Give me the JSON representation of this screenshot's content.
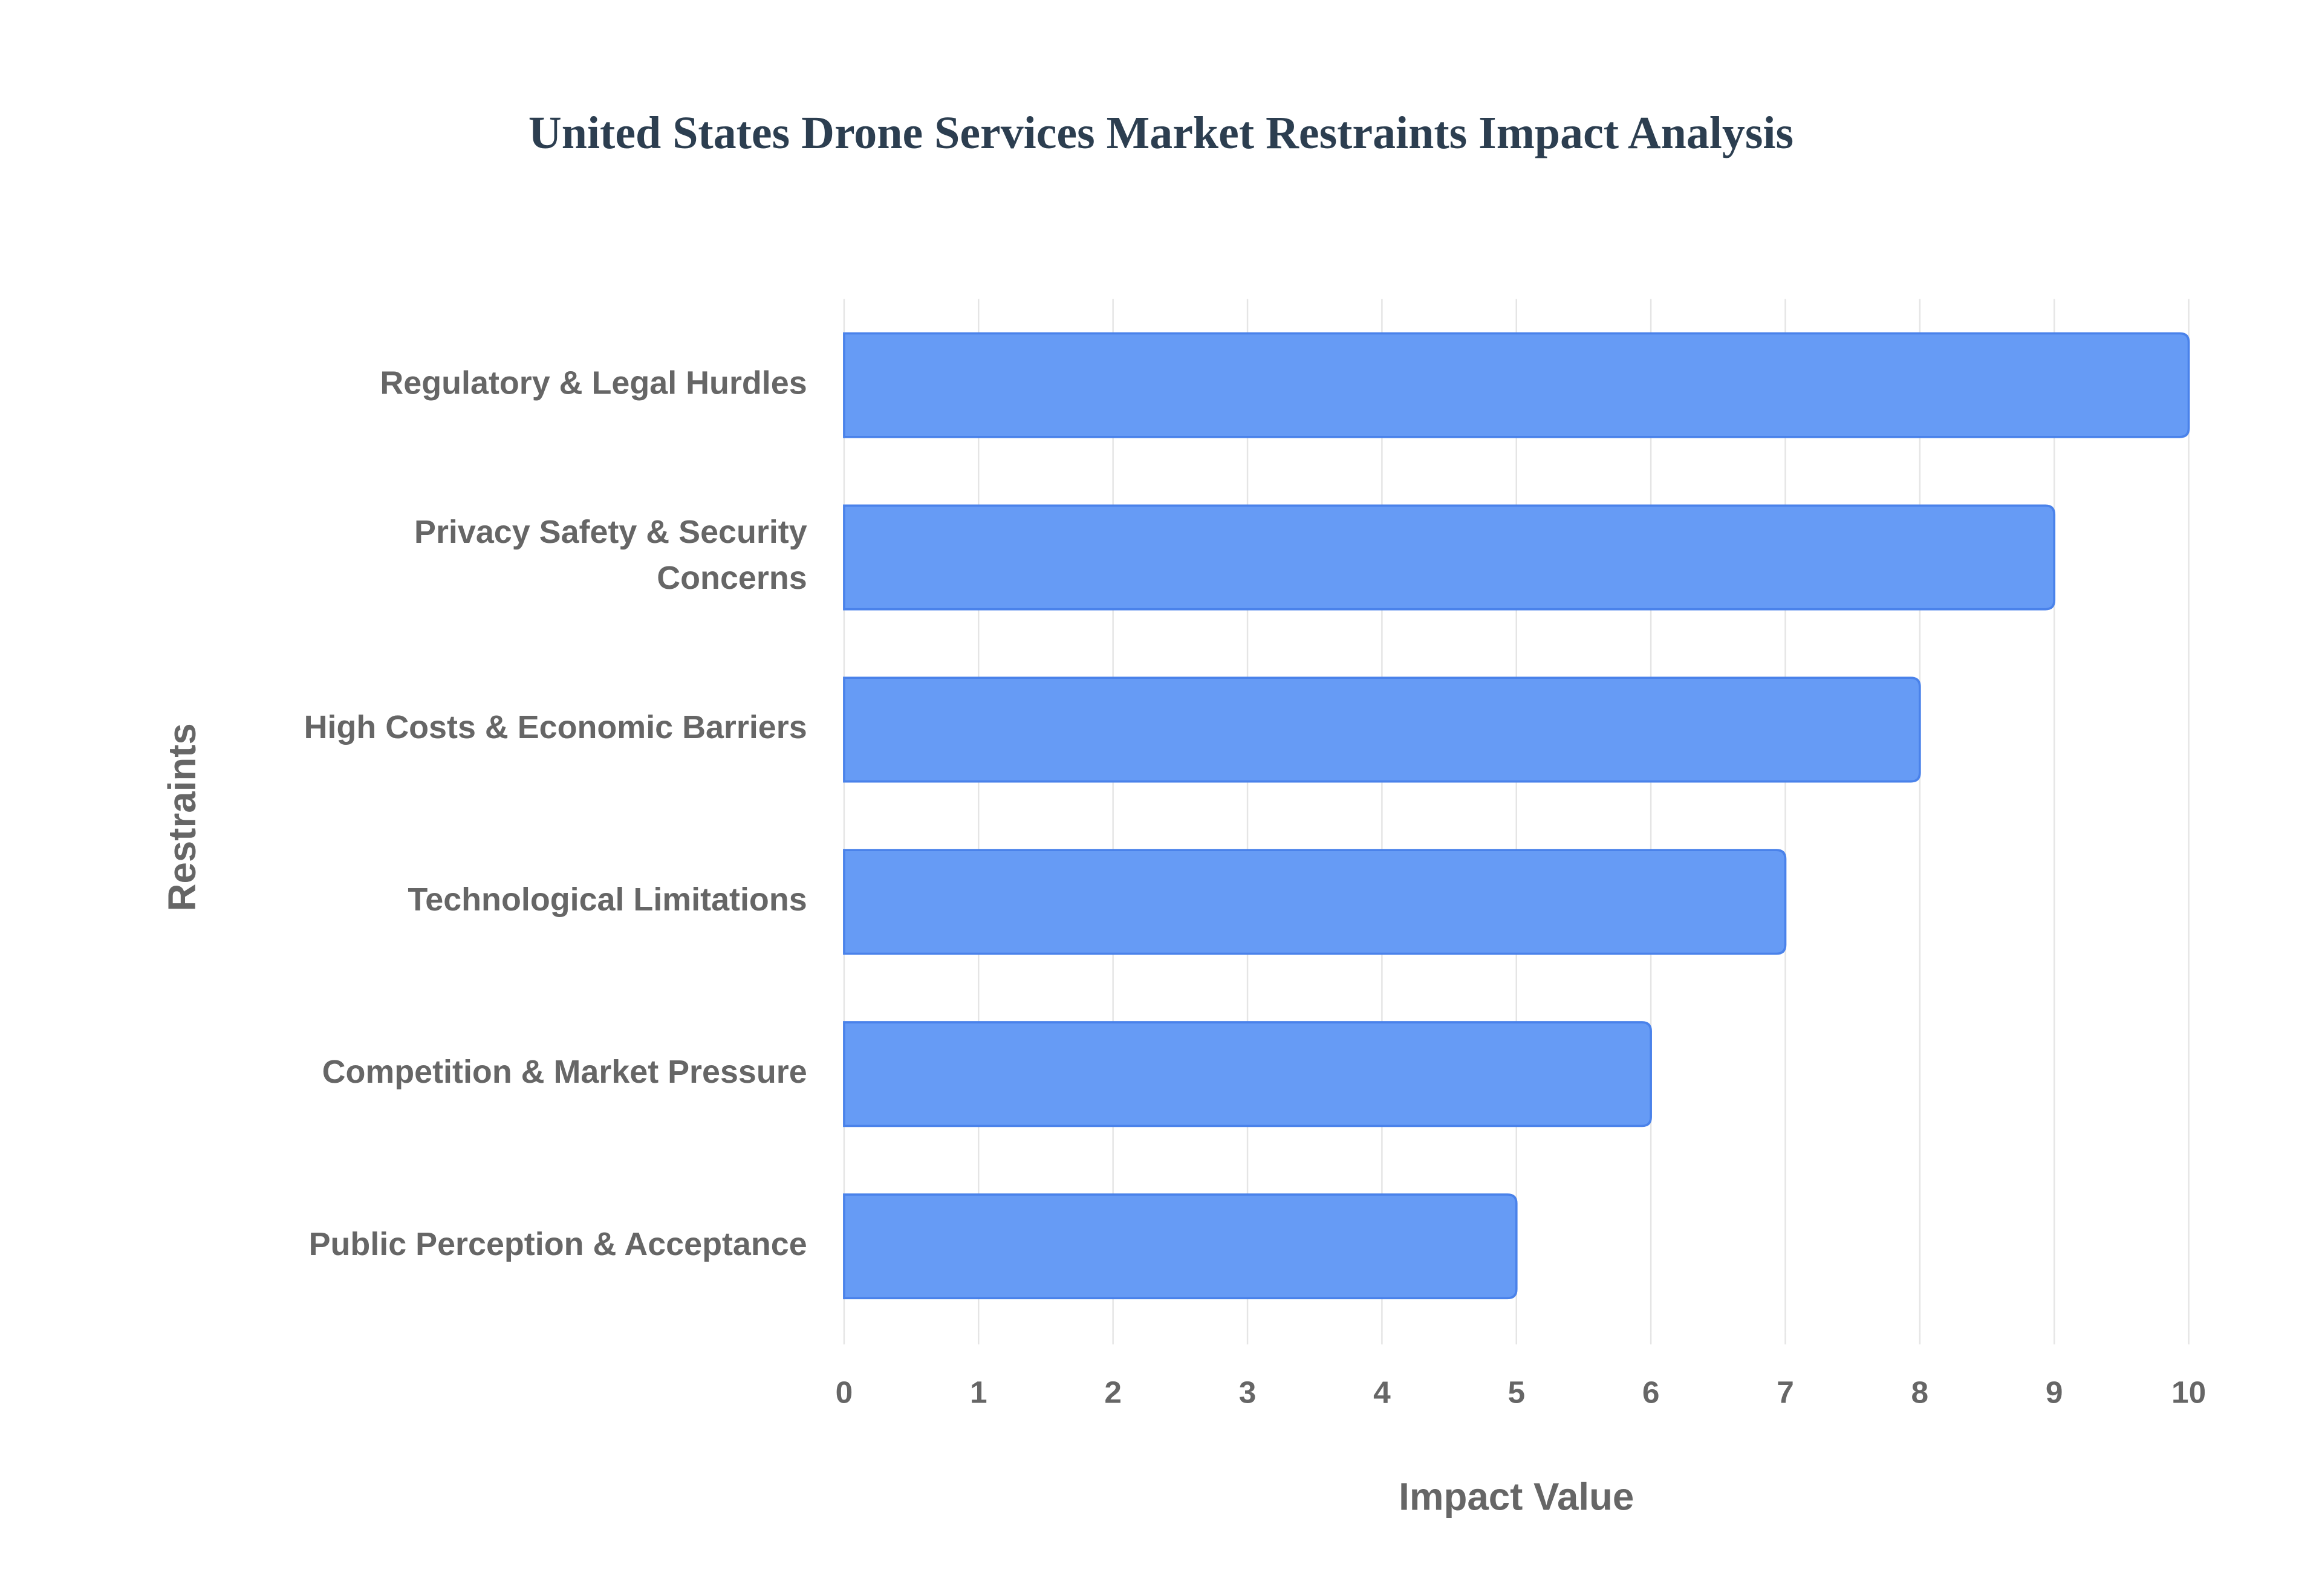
{
  "chart_data": {
    "type": "bar",
    "orientation": "horizontal",
    "title": "United States Drone Services Market Restraints Impact Analysis",
    "xlabel": "Impact Value",
    "ylabel": "Restraints",
    "categories": [
      "Regulatory & Legal Hurdles",
      "Privacy Safety & Security Concerns",
      "High Costs & Economic Barriers",
      "Technological Limitations",
      "Competition & Market Pressure",
      "Public Perception & Acceptance"
    ],
    "values": [
      10,
      9,
      8,
      7,
      6,
      5
    ],
    "color": "#6399f5",
    "xlim": [
      0,
      10
    ],
    "xticks": [
      0,
      1,
      2,
      3,
      4,
      5,
      6,
      7,
      8,
      9,
      10
    ],
    "grid": true
  }
}
